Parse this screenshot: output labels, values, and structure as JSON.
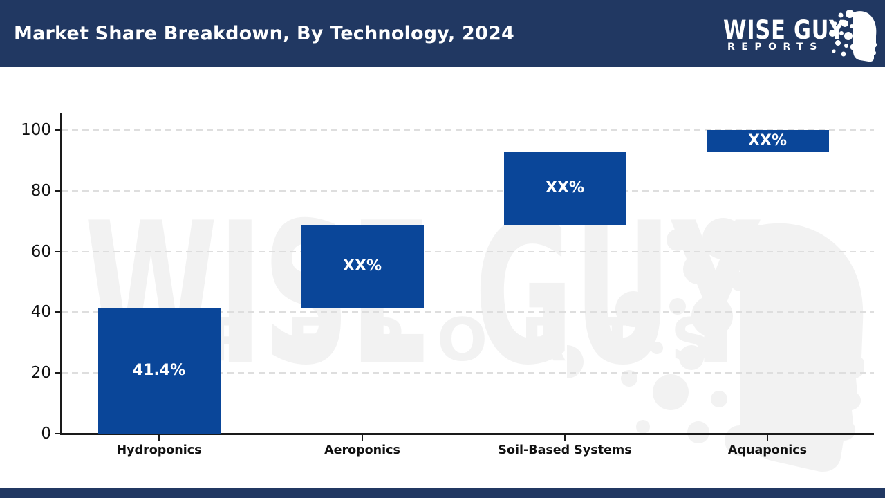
{
  "header": {
    "title": "Market Share Breakdown, By Technology, 2024",
    "logo": {
      "line1": "WISE GUY",
      "line2": "REPORTS"
    }
  },
  "watermark": {
    "line1": "WISE GUY",
    "line2": "REPORTS"
  },
  "chart_data": {
    "type": "bar",
    "subtype": "waterfall",
    "title": "Market Share Breakdown, By Technology, 2024",
    "categories": [
      "Hydroponics",
      "Aeroponics",
      "Soil-Based Systems",
      "Aquaponics"
    ],
    "segments": [
      {
        "category": "Hydroponics",
        "start": 0,
        "end": 41.4,
        "label": "41.4%"
      },
      {
        "category": "Aeroponics",
        "start": 41.4,
        "end": 68.8,
        "label": "XX%"
      },
      {
        "category": "Soil-Based Systems",
        "start": 68.8,
        "end": 92.8,
        "label": "XX%"
      },
      {
        "category": "Aquaponics",
        "start": 92.8,
        "end": 100,
        "label": "XX%"
      }
    ],
    "xlabel": "",
    "ylabel": "",
    "ylim": [
      0,
      105.7
    ],
    "yticks": [
      0,
      20,
      40,
      60,
      80,
      100
    ],
    "grid": "horizontal-dashed",
    "legend": "none",
    "bar_color": "#0a4699",
    "bar_label_color": "#ffffff",
    "axis_color": "#1a1a1a",
    "grid_color": "#dedede"
  },
  "colors": {
    "header_bg": "#213862",
    "footer_bg": "#213862",
    "title_text": "#ffffff",
    "watermark": "#f2f2f2"
  }
}
